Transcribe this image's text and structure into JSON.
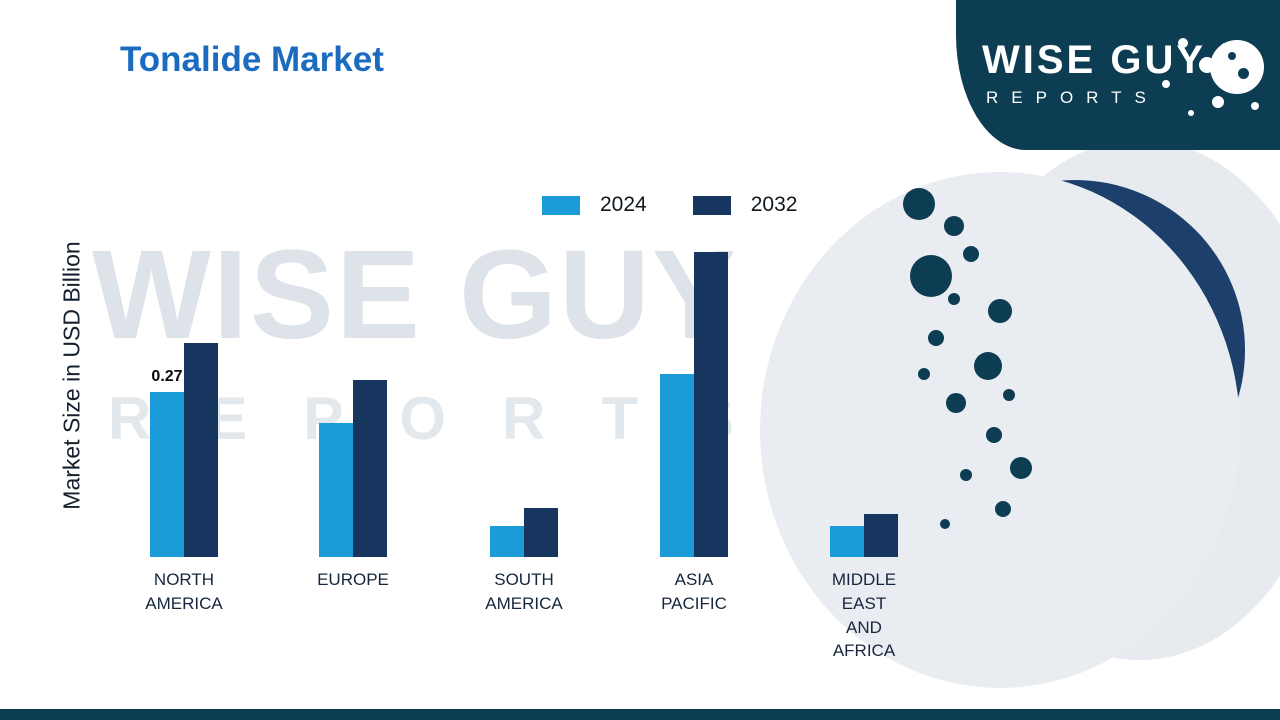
{
  "logo": {
    "line1": "WISE GUY",
    "line2": "REPORTS"
  },
  "watermark": {
    "line1": "WISE GUY",
    "line2": "REPORTS"
  },
  "icons": {
    "logo_face": "profile-silhouette"
  },
  "colors": {
    "title_blue": "#1b6cc0",
    "teal": "#0d3d52",
    "bar_2024": "#1b9cd8",
    "bar_2032": "#16365f",
    "watermark_gray": "#dde3e9"
  },
  "chart_data": {
    "type": "bar",
    "title": "Tonalide Market",
    "ylabel": "Market Size in USD Billion",
    "categories": [
      "NORTH AMERICA",
      "EUROPE",
      "SOUTH AMERICA",
      "ASIA PACIFIC",
      "MIDDLE EAST AND AFRICA"
    ],
    "series": [
      {
        "name": "2024",
        "color": "#1b9cd8",
        "values": [
          0.27,
          0.22,
          0.05,
          0.3,
          0.05
        ]
      },
      {
        "name": "2032",
        "color": "#16365f",
        "values": [
          0.35,
          0.29,
          0.08,
          0.5,
          0.07
        ]
      }
    ],
    "ylim": [
      0,
      0.55
    ],
    "grid": false,
    "legend_position": "top-center",
    "data_labels": [
      {
        "category": "NORTH AMERICA",
        "series": "2024",
        "text": "0.27"
      }
    ]
  }
}
